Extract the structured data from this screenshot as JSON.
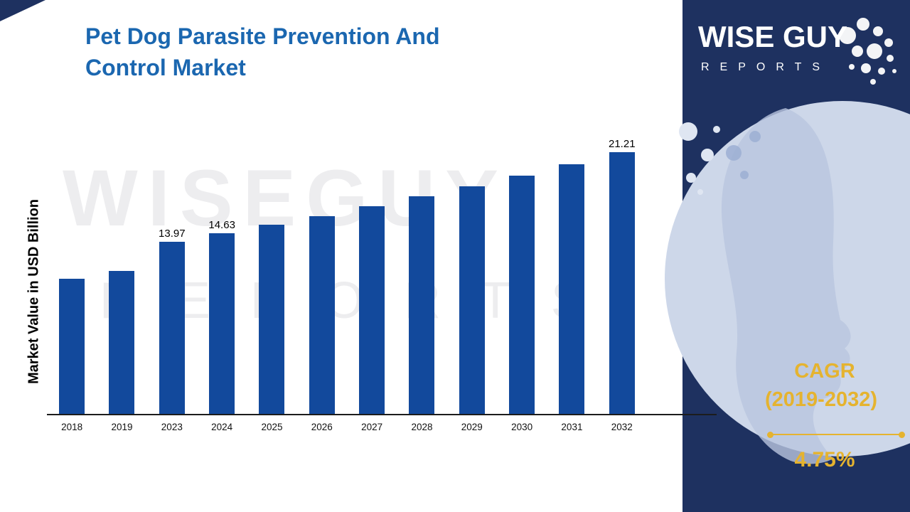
{
  "title": {
    "line1": "Pet Dog Parasite Prevention And",
    "line2": "Control Market",
    "color": "#1b67b0"
  },
  "logo": {
    "name": "WISE GUY",
    "sub": "REPORTS"
  },
  "watermark": {
    "line1": "WISEGUY",
    "line2": "REPORTS"
  },
  "chart_data": {
    "type": "bar",
    "title": "Pet Dog Parasite Prevention And Control Market",
    "xlabel": "",
    "ylabel": "Market Value in USD Billion",
    "categories": [
      "2018",
      "2019",
      "2023",
      "2024",
      "2025",
      "2026",
      "2027",
      "2028",
      "2029",
      "2030",
      "2031",
      "2032"
    ],
    "values": [
      11.0,
      11.6,
      13.97,
      14.63,
      15.33,
      16.05,
      16.82,
      17.62,
      18.45,
      19.33,
      20.25,
      21.21
    ],
    "bar_labels": [
      "",
      "",
      "13.97",
      "14.63",
      "",
      "",
      "",
      "",
      "",
      "",
      "",
      "21.21"
    ],
    "bar_color": "#12499c",
    "ylim": [
      0,
      23
    ],
    "grid": false,
    "legend": false
  },
  "panel": {
    "bg_color": "#1e3160",
    "accent_color": "#e5b32f",
    "cagr_label": "CAGR",
    "cagr_period": "(2019-2032)",
    "cagr_value": "4.75%"
  }
}
